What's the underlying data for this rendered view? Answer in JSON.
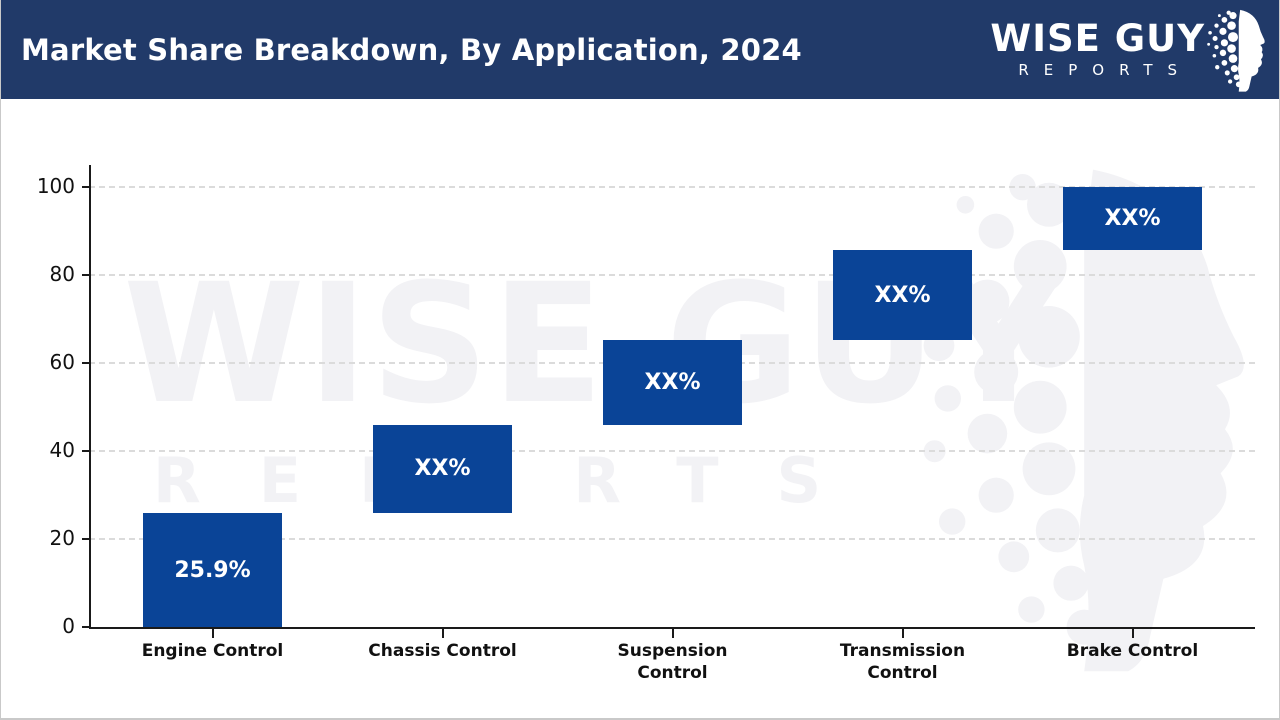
{
  "header": {
    "title": "Market Share Breakdown, By Application, 2024",
    "bg_color": "#213A69",
    "logo": {
      "name": "WISE GUY",
      "sub": "REPORTS"
    }
  },
  "watermark": {
    "name": "WISE GUY",
    "sub": "REPORTS"
  },
  "chart_data": {
    "type": "bar",
    "subtype": "waterfall",
    "title": "Market Share Breakdown, By Application, 2024",
    "categories": [
      "Engine Control",
      "Chassis Control",
      "Suspension Control",
      "Transmission Control",
      "Brake Control"
    ],
    "series": [
      {
        "name": "Market Share",
        "segments": [
          {
            "start": 0,
            "end": 25.9
          },
          {
            "start": 25.9,
            "end": 46
          },
          {
            "start": 46,
            "end": 65.3
          },
          {
            "start": 65.3,
            "end": 85.6
          },
          {
            "start": 85.6,
            "end": 100
          }
        ]
      }
    ],
    "bar_labels": [
      "25.9%",
      "XX%",
      "XX%",
      "XX%",
      "XX%"
    ],
    "xlabel": "",
    "ylabel": "",
    "ylim": [
      0,
      105
    ],
    "yticks": [
      0,
      20,
      40,
      60,
      80,
      100
    ],
    "grid": "horizontal-dashed",
    "legend": "none",
    "colors": {
      "bar": "#0A4497",
      "bar_label": "#FFFFFF",
      "axis": "#1a1a1a",
      "gridline": "#DBDBDB",
      "watermark": "#F2F2F5"
    }
  }
}
